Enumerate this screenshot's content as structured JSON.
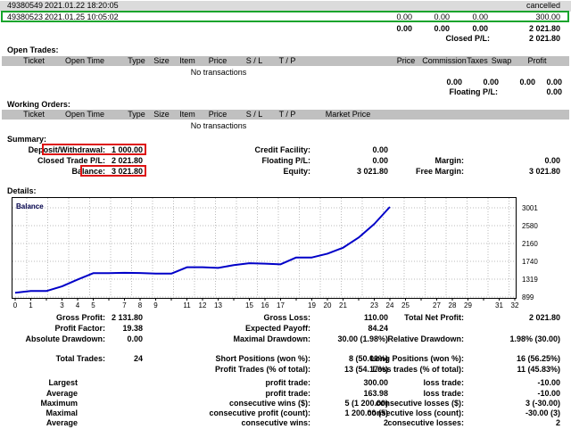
{
  "colors": {
    "highlight_green": "#17A42C",
    "highlight_red": "#DD1212",
    "table_header_bg": "#C0C0C0",
    "row_gray_bg": "#DBDBDB",
    "chart_line": "#0000C8",
    "chart_legend_text": "#00004B"
  },
  "history": {
    "rows": [
      {
        "ticket": "49380549",
        "open_time": "2021.01.22 18:20:05",
        "status": "cancelled",
        "highlighted": false
      },
      {
        "ticket": "49380523",
        "open_time": "2021.01.25 10:05:02",
        "commission": "0.00",
        "taxes": "0.00",
        "swap": "0.00",
        "profit": "300.00",
        "highlighted": true
      }
    ],
    "totals": {
      "commission": "0.00",
      "taxes": "0.00",
      "swap": "0.00",
      "profit": "2 021.80"
    },
    "closed_pl": {
      "label": "Closed P/L:",
      "value": "2 021.80"
    }
  },
  "open_trades": {
    "heading": "Open Trades:",
    "columns": [
      "Ticket",
      "Open Time",
      "Type",
      "Size",
      "Item",
      "Price",
      "S / L",
      "T / P",
      "Price",
      "Commission",
      "Taxes",
      "Swap",
      "Profit"
    ],
    "empty_text": "No transactions",
    "totals": {
      "commission": "0.00",
      "taxes": "0.00",
      "swap": "0.00",
      "profit": "0.00"
    },
    "floating_pl": {
      "label": "Floating P/L:",
      "value": "0.00"
    }
  },
  "working_orders": {
    "heading": "Working Orders:",
    "columns": [
      "Ticket",
      "Open Time",
      "Type",
      "Size",
      "Item",
      "Price",
      "S / L",
      "T / P",
      "Market Price"
    ],
    "empty_text": "No transactions"
  },
  "summary": {
    "heading": "Summary:",
    "rows": [
      [
        {
          "col": 1,
          "label": "Deposit/Withdrawal:",
          "value": "1 000.00",
          "boxed": true
        },
        {
          "col": 2,
          "label": "Credit Facility:",
          "value": "0.00"
        }
      ],
      [
        {
          "col": 1,
          "label": "Closed Trade P/L:",
          "value": "2 021.80"
        },
        {
          "col": 2,
          "label": "Floating P/L:",
          "value": "0.00"
        },
        {
          "col": 3,
          "label": "Margin:",
          "value": "0.00"
        }
      ],
      [
        {
          "col": 1,
          "label": "Balance:",
          "value": "3 021.80",
          "boxed": true
        },
        {
          "col": 2,
          "label": "Equity:",
          "value": "3 021.80"
        },
        {
          "col": 3,
          "label": "Free Margin:",
          "value": "3 021.80"
        }
      ]
    ]
  },
  "details": {
    "heading": "Details:",
    "stats_top": [
      [
        {
          "col": 1,
          "label": "Gross Profit:",
          "value": "2 131.80"
        },
        {
          "col": 2,
          "label": "Gross Loss:",
          "value": "110.00"
        },
        {
          "col": 3,
          "label": "Total Net Profit:",
          "value": "2 021.80"
        }
      ],
      [
        {
          "col": 1,
          "label": "Profit Factor:",
          "value": "19.38"
        },
        {
          "col": 2,
          "label": "Expected Payoff:",
          "value": "84.24"
        }
      ],
      [
        {
          "col": 1,
          "label": "Absolute Drawdown:",
          "value": "0.00"
        },
        {
          "col": 2,
          "label": "Maximal Drawdown:",
          "value": "30.00 (1.98%)"
        },
        {
          "col": 3,
          "label": "Relative Drawdown:",
          "value": "1.98% (30.00)"
        }
      ],
      [
        {
          "col": 1,
          "label": "Total Trades:",
          "value": "24"
        },
        {
          "col": 2,
          "label": "Short Positions (won %):",
          "value": "8 (50.00%)"
        },
        {
          "col": 3,
          "label": "Long Positions (won %):",
          "value": "16 (56.25%)"
        }
      ],
      [
        {
          "col": 2,
          "label": "Profit Trades (% of total):",
          "value": "13 (54.17%)"
        },
        {
          "col": 3,
          "label": "Loss trades (% of total):",
          "value": "11 (45.83%)"
        }
      ]
    ],
    "stats_bottom": [
      {
        "word": "Largest",
        "col2": {
          "label": "profit trade:",
          "value": "300.00"
        },
        "col3": {
          "label": "loss trade:",
          "value": "-10.00"
        }
      },
      {
        "word": "Average",
        "col2": {
          "label": "profit trade:",
          "value": "163.98"
        },
        "col3": {
          "label": "loss trade:",
          "value": "-10.00"
        }
      },
      {
        "word": "Maximum",
        "col2": {
          "label": "consecutive wins ($):",
          "value": "5 (1 200.00)"
        },
        "col3": {
          "label": "consecutive losses ($):",
          "value": "3 (-30.00)"
        }
      },
      {
        "word": "Maximal",
        "col2": {
          "label": "consecutive profit (count):",
          "value": "1 200.00 (5)"
        },
        "col3": {
          "label": "consecutive loss (count):",
          "value": "-30.00 (3)"
        }
      },
      {
        "word": "Average",
        "col2": {
          "label": "consecutive wins:",
          "value": "2"
        },
        "col3": {
          "label": "consecutive losses:",
          "value": "2"
        }
      }
    ]
  },
  "chart_data": {
    "type": "line",
    "title": "Balance",
    "series": [
      {
        "name": "Balance",
        "values": [
          1000,
          1040,
          1040,
          1150,
          1310,
          1460,
          1460,
          1470,
          1465,
          1450,
          1450,
          1600,
          1600,
          1585,
          1650,
          1695,
          1685,
          1670,
          1830,
          1830,
          1920,
          2060,
          2300,
          2620,
          3021.8
        ]
      }
    ],
    "x_step": 1,
    "xlim": [
      0,
      32
    ],
    "ylim": [
      899,
      3001
    ],
    "x_tick_labels": [
      "0",
      "1",
      "3",
      "4",
      "5",
      "7",
      "8",
      "9",
      "11",
      "12",
      "13",
      "15",
      "16",
      "17",
      "19",
      "20",
      "21",
      "23",
      "24",
      "25",
      "27",
      "28",
      "29",
      "31",
      "32"
    ],
    "y_tick_labels": [
      "3001",
      "2580",
      "2160",
      "1740",
      "1319",
      "899"
    ],
    "grid": true,
    "legend_position": "top-left",
    "line_color": "#0000C8"
  }
}
